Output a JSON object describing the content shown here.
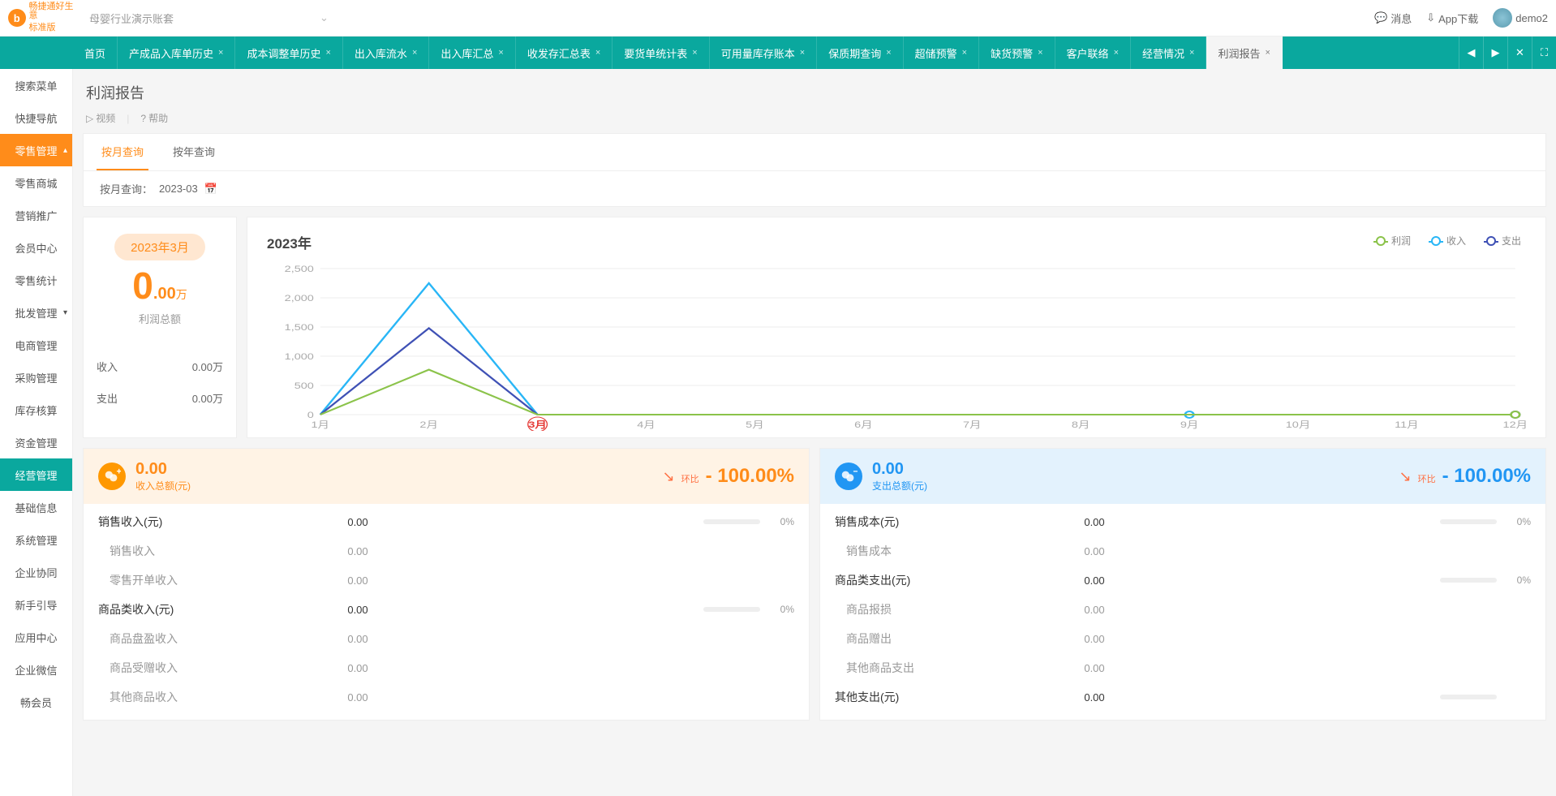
{
  "brand": {
    "name": "畅捷通好生意",
    "edition": "标准版"
  },
  "org_selector": "母婴行业演示账套",
  "top_right": {
    "msg": "消息",
    "app": "App下载",
    "user": "demo2"
  },
  "tabs": [
    {
      "label": "首页",
      "closable": false
    },
    {
      "label": "产成品入库单历史",
      "closable": true
    },
    {
      "label": "成本调整单历史",
      "closable": true
    },
    {
      "label": "出入库流水",
      "closable": true
    },
    {
      "label": "出入库汇总",
      "closable": true
    },
    {
      "label": "收发存汇总表",
      "closable": true
    },
    {
      "label": "要货单统计表",
      "closable": true
    },
    {
      "label": "可用量库存账本",
      "closable": true
    },
    {
      "label": "保质期查询",
      "closable": true
    },
    {
      "label": "超储预警",
      "closable": true
    },
    {
      "label": "缺货预警",
      "closable": true
    },
    {
      "label": "客户联络",
      "closable": true
    },
    {
      "label": "经营情况",
      "closable": true
    },
    {
      "label": "利润报告",
      "closable": true,
      "active": true
    }
  ],
  "sidebar": [
    {
      "label": "搜索菜单"
    },
    {
      "label": "快捷导航"
    },
    {
      "label": "零售管理",
      "accent": true,
      "caret": "▴"
    },
    {
      "label": "零售商城"
    },
    {
      "label": "营销推广"
    },
    {
      "label": "会员中心"
    },
    {
      "label": "零售统计"
    },
    {
      "label": "批发管理",
      "caret": "▾"
    },
    {
      "label": "电商管理"
    },
    {
      "label": "采购管理"
    },
    {
      "label": "库存核算"
    },
    {
      "label": "资金管理"
    },
    {
      "label": "经营管理",
      "sub_active": true
    },
    {
      "label": "基础信息"
    },
    {
      "label": "系统管理"
    },
    {
      "label": "企业协同"
    },
    {
      "label": "新手引导"
    },
    {
      "label": "应用中心"
    },
    {
      "label": "企业微信"
    },
    {
      "label": "畅会员"
    }
  ],
  "page": {
    "title": "利润报告",
    "video": "视频",
    "help": "帮助"
  },
  "query": {
    "tab_month": "按月查询",
    "tab_year": "按年查询",
    "label": "按月查询：",
    "value": "2023-03"
  },
  "summary": {
    "period": "2023年3月",
    "amount_int": "0",
    "amount_dec": ".00",
    "unit": "万",
    "caption": "利润总额",
    "rows": [
      {
        "k": "收入",
        "v": "0.00万"
      },
      {
        "k": "支出",
        "v": "0.00万"
      }
    ]
  },
  "chart": {
    "title": "2023年",
    "legend": [
      "利润",
      "收入",
      "支出"
    ],
    "colors": {
      "profit": "#8bc34a",
      "income": "#29b6f6",
      "expense": "#3f51b5",
      "grid": "#eeeeee",
      "axis": "#bbbbbb",
      "highlight": "#e53935"
    },
    "y": {
      "min": 0,
      "max": 2500,
      "step": 500,
      "labels": [
        "0",
        "500",
        "1,000",
        "1,500",
        "2,000",
        "2,500"
      ]
    },
    "x": {
      "labels": [
        "1月",
        "2月",
        "3月",
        "4月",
        "5月",
        "6月",
        "7月",
        "8月",
        "9月",
        "10月",
        "11月",
        "12月"
      ],
      "highlight_index": 2
    },
    "series": {
      "income": [
        0,
        2250,
        0,
        0,
        0,
        0,
        0,
        0,
        0,
        0,
        0,
        0
      ],
      "expense": [
        0,
        1480,
        0,
        0,
        0,
        0,
        0,
        0,
        0,
        0,
        0,
        0
      ],
      "profit": [
        0,
        770,
        0,
        0,
        0,
        0,
        0,
        0,
        0,
        0,
        0,
        0
      ]
    },
    "incomplete_from_index": 9
  },
  "income_card": {
    "amount": "0.00",
    "label": "收入总额(元)",
    "hb": "环比",
    "pct": "- 100.00%",
    "rows": [
      {
        "name": "销售收入(元)",
        "val": "0.00",
        "pct": "0%",
        "group": true
      },
      {
        "name": "销售收入",
        "val": "0.00",
        "sub": true
      },
      {
        "name": "零售开单收入",
        "val": "0.00",
        "sub": true
      },
      {
        "name": "商品类收入(元)",
        "val": "0.00",
        "pct": "0%",
        "group": true
      },
      {
        "name": "商品盘盈收入",
        "val": "0.00",
        "sub": true
      },
      {
        "name": "商品受赠收入",
        "val": "0.00",
        "sub": true
      },
      {
        "name": "其他商品收入",
        "val": "0.00",
        "sub": true
      }
    ]
  },
  "expense_card": {
    "amount": "0.00",
    "label": "支出总额(元)",
    "hb": "环比",
    "pct": "- 100.00%",
    "rows": [
      {
        "name": "销售成本(元)",
        "val": "0.00",
        "pct": "0%",
        "group": true
      },
      {
        "name": "销售成本",
        "val": "0.00",
        "sub": true
      },
      {
        "name": "商品类支出(元)",
        "val": "0.00",
        "pct": "0%",
        "group": true
      },
      {
        "name": "商品报损",
        "val": "0.00",
        "sub": true
      },
      {
        "name": "商品赠出",
        "val": "0.00",
        "sub": true
      },
      {
        "name": "其他商品支出",
        "val": "0.00",
        "sub": true
      },
      {
        "name": "其他支出(元)",
        "val": "0.00",
        "group": true
      }
    ]
  }
}
